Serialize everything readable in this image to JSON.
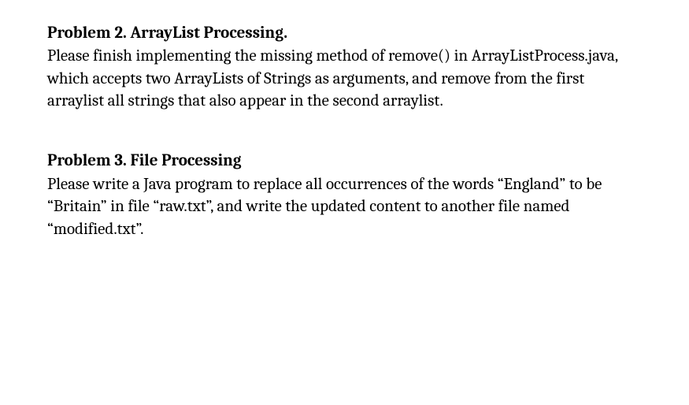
{
  "problems": [
    {
      "title": "Problem 2.  ArrayList Processing.",
      "body": "Please finish implementing the missing method of remove() in ArrayListProcess.java, which accepts two ArrayLists of Strings as arguments, and remove from the first arraylist all strings that also appear in the second arraylist."
    },
    {
      "title": "Problem 3.  File Processing",
      "body": "Please write a Java program to replace all occurrences of the words “England” to be “Britain” in file “raw.txt”, and write the updated content to another file named “modified.txt”."
    }
  ],
  "style": {
    "background_color": "#ffffff",
    "text_color": "#000000",
    "font_family": "Cambria, Georgia, serif",
    "title_fontsize": 21,
    "body_fontsize": 21,
    "title_fontweight": "bold",
    "line_height": 1.35,
    "block_spacing": 48
  }
}
